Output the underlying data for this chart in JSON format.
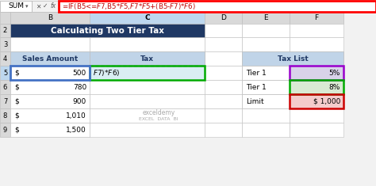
{
  "formula_bar_text": "=IF(B5<=$F$7,B5*$F$5,$F$7*$F$5+(B5-$F$7)*$F$6)",
  "title": "Calculating Two Tier Tax",
  "title_bg": "#1F3864",
  "title_fg": "#FFFFFF",
  "header_bg": "#C0D4E8",
  "header_fg": "#1F3864",
  "col_headers": [
    "Sales Amount",
    "Tax"
  ],
  "sales_data": [
    "500",
    "780",
    "900",
    "1,010",
    "1,500"
  ],
  "tax_row0_text": "$F$7)*$F$6)",
  "right_header": "Tax List",
  "right_header_bg": "#C0D4E8",
  "right_header_fg": "#1F3864",
  "right_rows": [
    {
      "label": "Tier 1",
      "value": "5%",
      "value_bg": "#D9D2E9",
      "border": "#9900CC"
    },
    {
      "label": "Tier 1",
      "value": "8%",
      "value_bg": "#D9EAD3",
      "border": "#00AA00"
    },
    {
      "label": "Limit",
      "value": "$ 1,000",
      "value_bg": "#F4CCCC",
      "border": "#CC0000"
    }
  ],
  "grid_color": "#BFBFBF",
  "colhdr_bg": "#D9D9D9",
  "colhdr_sel": "#BDD7EE",
  "rowhdr_bg": "#D9D9D9",
  "rowhdr_sel": "#BDD7EE",
  "selected_cell_border": "#4472C4",
  "C5_fill": "#DAEEF3",
  "C5_border": "#00AA00",
  "watermark_line1": "exceldemy",
  "watermark_line2": "EXCEL  DATA  BI",
  "bg_color": "#F2F2F2",
  "formula_text_color": "#C00000"
}
